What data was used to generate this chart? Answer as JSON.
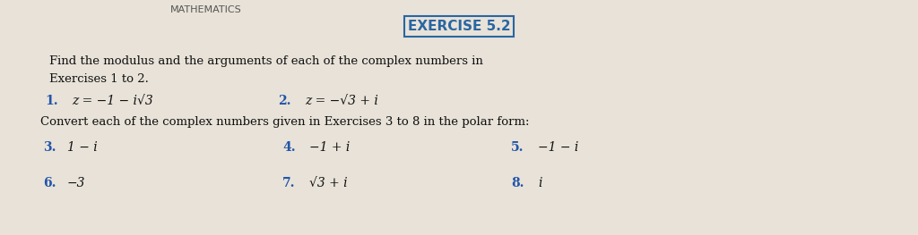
{
  "background_color": "#e8e2d8",
  "header_text": "MATHEMATICS",
  "title": "EXERCISE 5.2",
  "title_color": "#2966a3",
  "title_border_color": "#2966a3",
  "body_color": "#111111",
  "number_color": "#2255aa",
  "para1": "Find the modulus and the arguments of each of the complex numbers in",
  "para2": "Exercises 1 to 2.",
  "ex1_num": "1.",
  "ex1_expr": "z = −1 − i√3",
  "ex2_num": "2.",
  "ex2_expr": "z = −√3 + i",
  "para3": "Convert each of the complex numbers given in Exercises 3 to 8 in the polar form:",
  "ex3_num": "3.",
  "ex3_expr": "1 − i",
  "ex4_num": "4.",
  "ex4_expr": "−1 + i",
  "ex5_num": "5.",
  "ex5_expr": "−1 − i",
  "ex6_num": "6.",
  "ex6_expr": "−3",
  "ex7_num": "7.",
  "ex7_expr": "√3 + i",
  "ex8_num": "8.",
  "ex8_expr": "i",
  "fig_width": 10.24,
  "fig_height": 2.63,
  "dpi": 100
}
